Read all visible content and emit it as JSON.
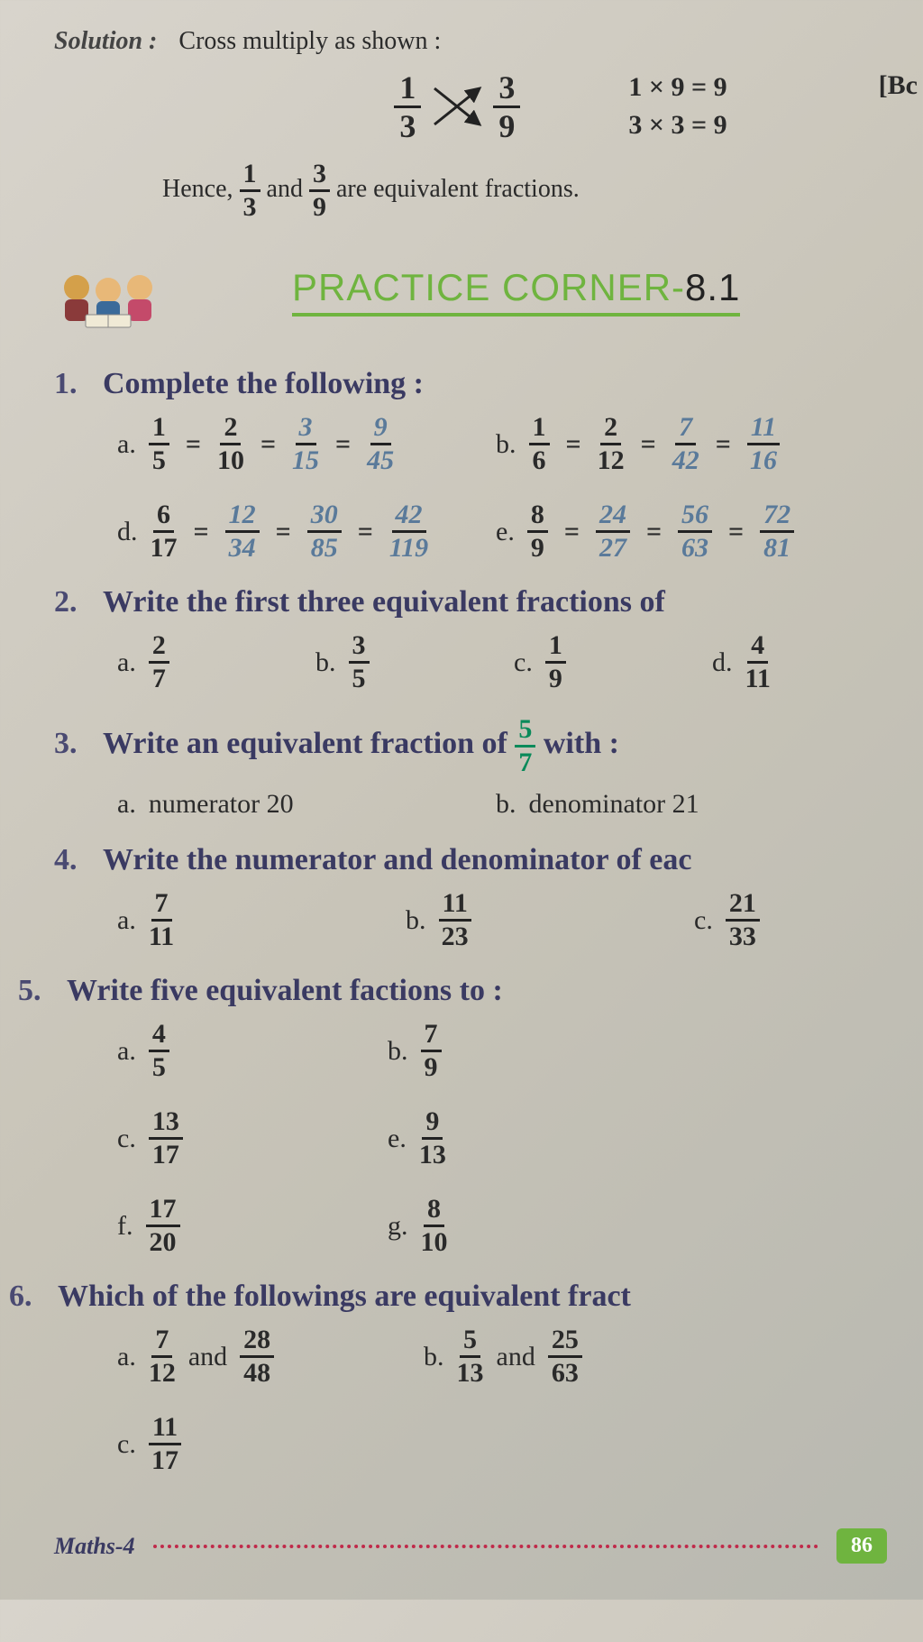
{
  "solution": {
    "label": "Solution :",
    "instruction": "Cross multiply as shown :",
    "frac_left": {
      "n": "1",
      "d": "3"
    },
    "frac_right": {
      "n": "3",
      "d": "9"
    },
    "eq1": "1 × 9 = 9",
    "eq2": "3 × 3 = 9",
    "hence_pre": "Hence, ",
    "hence_mid": " and ",
    "hence_post": " are equivalent fractions.",
    "bracket": "[Bc"
  },
  "corner": {
    "title_a": "PRACTICE CORNER-",
    "title_b": "8.1"
  },
  "q1": {
    "num": "1.",
    "text": "Complete the following :",
    "a": {
      "l": "a.",
      "p": [
        {
          "n": "1",
          "d": "5"
        },
        {
          "n": "2",
          "d": "10"
        },
        {
          "n": "3",
          "d": "15",
          "hand": true
        },
        {
          "n": "9",
          "d": "45",
          "hand": true
        }
      ]
    },
    "b": {
      "l": "b.",
      "p": [
        {
          "n": "1",
          "d": "6"
        },
        {
          "n": "2",
          "d": "12"
        },
        {
          "n": "7",
          "d": "42",
          "hand": true
        },
        {
          "n": "11",
          "d": "16",
          "hand": true
        }
      ]
    },
    "d": {
      "l": "d.",
      "p": [
        {
          "n": "6",
          "d": "17"
        },
        {
          "n": "12",
          "d": "34",
          "hand": true
        },
        {
          "n": "30",
          "d": "85",
          "hand": true
        },
        {
          "n": "42",
          "d": "119",
          "hand": true
        }
      ]
    },
    "e": {
      "l": "e.",
      "p": [
        {
          "n": "8",
          "d": "9"
        },
        {
          "n": "24",
          "d": "27",
          "hand": true
        },
        {
          "n": "56",
          "d": "63",
          "hand": true
        },
        {
          "n": "72",
          "d": "81",
          "hand": true
        }
      ]
    }
  },
  "q2": {
    "num": "2.",
    "text": "Write the first three equivalent fractions of",
    "opts": [
      {
        "l": "a.",
        "n": "2",
        "d": "7"
      },
      {
        "l": "b.",
        "n": "3",
        "d": "5"
      },
      {
        "l": "c.",
        "n": "1",
        "d": "9"
      },
      {
        "l": "d.",
        "n": "4",
        "d": "11"
      }
    ]
  },
  "q3": {
    "num": "3.",
    "text_a": "Write an equivalent fraction of ",
    "frac": {
      "n": "5",
      "d": "7"
    },
    "text_b": " with :",
    "a": {
      "l": "a.",
      "t": "numerator 20"
    },
    "b": {
      "l": "b.",
      "t": "denominator 21"
    }
  },
  "q4": {
    "num": "4.",
    "text": "Write the numerator and denominator of eac",
    "opts": [
      {
        "l": "a.",
        "n": "7",
        "d": "11"
      },
      {
        "l": "b.",
        "n": "11",
        "d": "23"
      },
      {
        "l": "c.",
        "n": "21",
        "d": "33"
      }
    ]
  },
  "q5": {
    "num": "5.",
    "text": "Write five equivalent factions to :",
    "opts": [
      {
        "l": "a.",
        "n": "4",
        "d": "5"
      },
      {
        "l": "b.",
        "n": "7",
        "d": "9"
      },
      {
        "l": "c.",
        "n": "13",
        "d": "17"
      },
      {
        "l": "e.",
        "n": "9",
        "d": "13"
      },
      {
        "l": "f.",
        "n": "17",
        "d": "20"
      },
      {
        "l": "g.",
        "n": "8",
        "d": "10"
      }
    ]
  },
  "q6": {
    "num": "6.",
    "text": "Which of the followings are equivalent fract",
    "a": {
      "l": "a.",
      "f1": {
        "n": "7",
        "d": "12"
      },
      "and": " and ",
      "f2": {
        "n": "28",
        "d": "48"
      }
    },
    "b": {
      "l": "b.",
      "f1": {
        "n": "5",
        "d": "13"
      },
      "and": " and ",
      "f2": {
        "n": "25",
        "d": "63"
      }
    },
    "c": {
      "l": "c.",
      "f1": {
        "n": "11",
        "d": "17"
      }
    }
  },
  "footer": {
    "label": "Maths-4",
    "page": "86"
  },
  "colors": {
    "green": "#6fb43f",
    "question": "#3a3a62",
    "text": "#2a2a2a",
    "hand": "#5a7a9a",
    "red": "#c02a4a",
    "frac_green": "#0a8a5a"
  }
}
